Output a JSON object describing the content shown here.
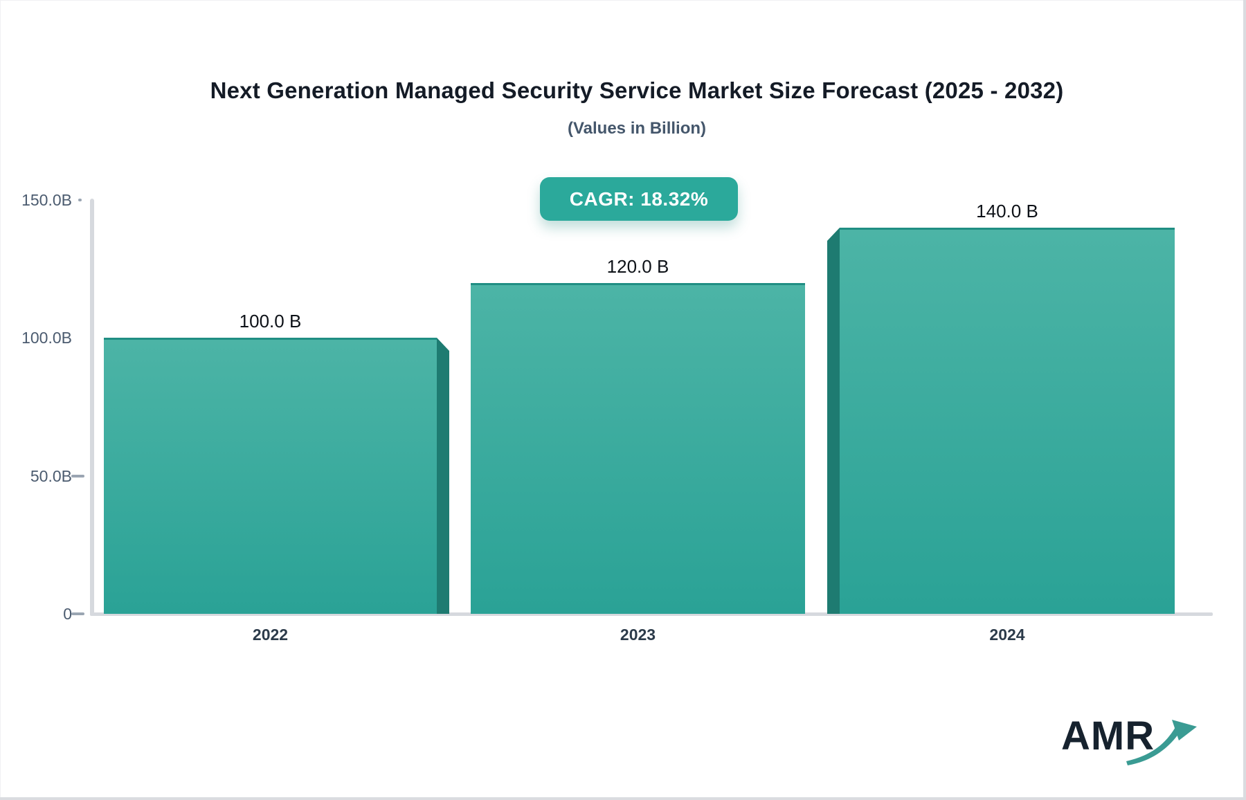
{
  "chart_data": {
    "type": "bar",
    "title": "Next Generation Managed Security Service Market Size Forecast (2025 - 2032)",
    "subtitle": "(Values in Billion)",
    "annotation": "CAGR: 18.32%",
    "categories": [
      "2022",
      "2023",
      "2024"
    ],
    "values": [
      100.0,
      120.0,
      140.0
    ],
    "value_labels": [
      "100.0 B",
      "120.0 B",
      "140.0 B"
    ],
    "ylim": [
      0,
      150
    ],
    "y_ticks": [
      {
        "label": "0",
        "value": 0,
        "mark": "dash"
      },
      {
        "label": "50.0B",
        "value": 50,
        "mark": "dash"
      },
      {
        "label": "100.0B",
        "value": 100,
        "mark": "none"
      },
      {
        "label": "150.0B",
        "value": 150,
        "mark": "dot"
      }
    ],
    "grid": false,
    "legend_position": "none"
  },
  "badge": {
    "label": "CAGR: 18.32%"
  },
  "logo": {
    "text": "AMR",
    "icon": "trending-up-arrow"
  },
  "colors": {
    "bar_top": "#4cb4a6",
    "bar_bottom": "#2aa296",
    "bar_border": "#208e83",
    "bar_side": "#1e7b71",
    "badge_bg": "#2ba99b",
    "axis_line": "#d6d9de",
    "y_label": "#4b5b6f",
    "x_label": "#2c3b4a",
    "title": "#141b26",
    "subtitle": "#44566b",
    "logo_text": "#16222e",
    "logo_arrow": "#3a9b93"
  }
}
